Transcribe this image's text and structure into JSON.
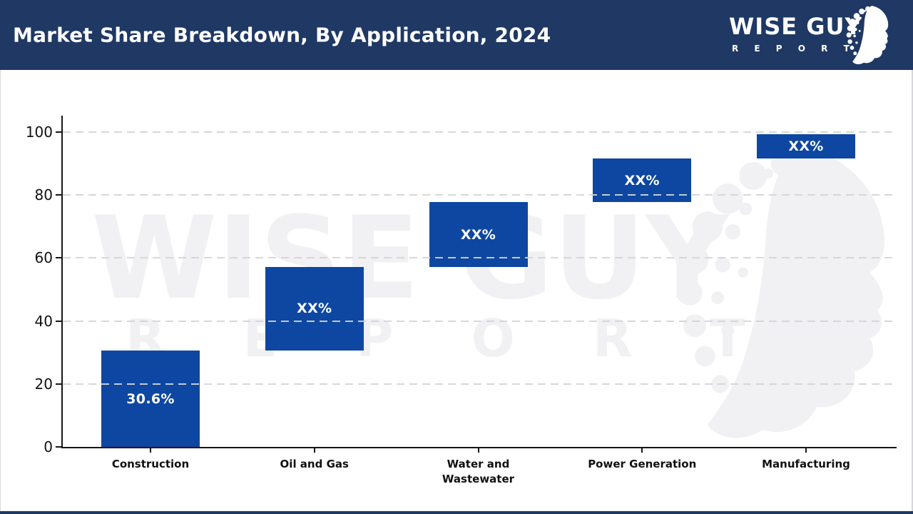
{
  "header": {
    "title": "Market Share Breakdown, By Application, 2024",
    "logo": {
      "line1": "WISE GUY",
      "line2": "R E P O R T S"
    }
  },
  "watermark": {
    "line1": "WISE GUY",
    "line2": "R E P O R T S"
  },
  "chart_data": {
    "type": "bar",
    "subtype": "waterfall (floating cumulative bars)",
    "title": "Market Share Breakdown, By Application, 2024",
    "categories": [
      "Construction",
      "Oil and Gas",
      "Water and\nWastewater",
      "Power Generation",
      "Manufacturing"
    ],
    "segments": [
      {
        "category": "Construction",
        "start": 0,
        "end": 30.6,
        "label": "30.6%"
      },
      {
        "category": "Oil and Gas",
        "start": 30.6,
        "end": 57.2,
        "label": "XX%"
      },
      {
        "category": "Water and Wastewater",
        "start": 57.2,
        "end": 77.7,
        "label": "XX%"
      },
      {
        "category": "Power Generation",
        "start": 77.7,
        "end": 91.5,
        "label": "XX%"
      },
      {
        "category": "Manufacturing",
        "start": 91.5,
        "end": 99.4,
        "label": "XX%"
      }
    ],
    "xlabel": "",
    "ylabel": "",
    "yticks": [
      0,
      20,
      40,
      60,
      80,
      100
    ],
    "ylim": [
      0,
      105
    ],
    "grid": {
      "axis": "y",
      "style": "dashed",
      "on": true
    },
    "legend": null,
    "bar_color": "#0D47A1",
    "bar_label_color": "#FFFFFF"
  },
  "colors": {
    "header_bg": "#1F3864",
    "page_bg": "#FFFFFF",
    "bar": "#0D47A1",
    "axis": "#161616",
    "grid": "#D4D4D9",
    "watermark": "#F1F1F4",
    "tick_label": "#111111"
  }
}
